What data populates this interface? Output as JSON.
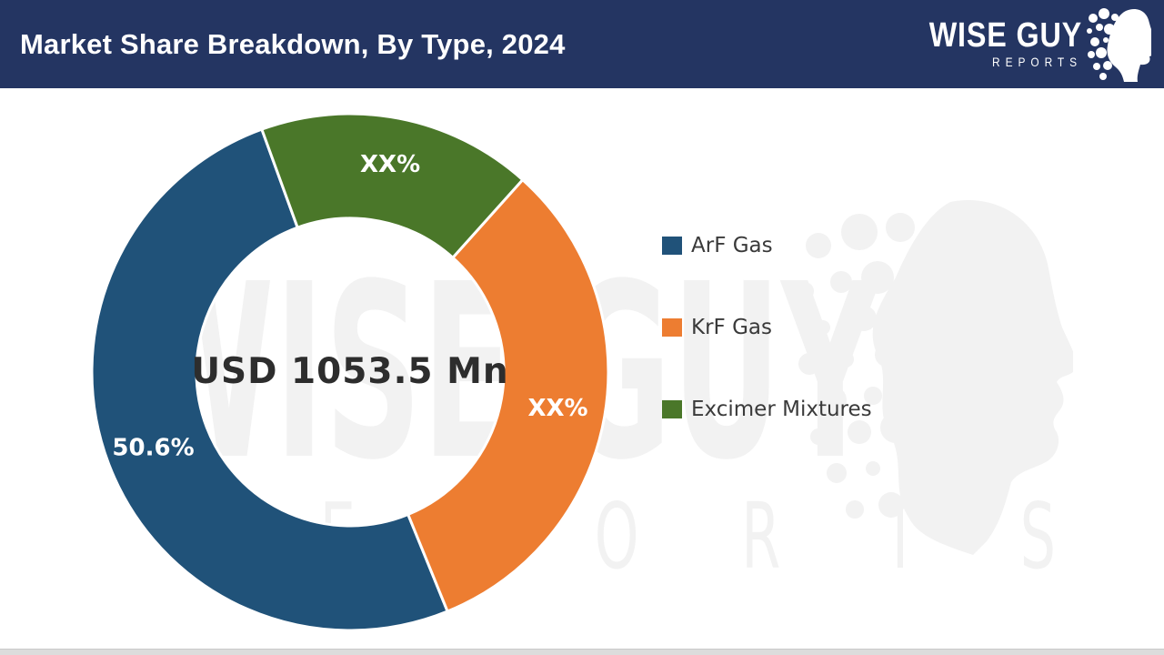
{
  "header": {
    "title": "Market Share Breakdown, By Type, 2024",
    "logo": {
      "line1": "WISE GUY",
      "line2": "REPORTS"
    }
  },
  "chart_data": {
    "type": "pie",
    "subtype": "donut",
    "title": "Market Share Breakdown, By Type, 2024",
    "center_label": "USD 1053.5 Mn",
    "start_angle_deg": 110,
    "direction": "counterclockwise",
    "legend_position": "right",
    "slices": [
      {
        "name": "ArF Gas",
        "value": 50.6,
        "label": "50.6%",
        "color": "#205279"
      },
      {
        "name": "KrF Gas",
        "value": 32.2,
        "label": "XX%",
        "color": "#ed7d31"
      },
      {
        "name": "Excimer Mixtures",
        "value": 17.2,
        "label": "XX%",
        "color": "#4a7729"
      }
    ]
  },
  "watermark": {
    "line1": "WISE GUY",
    "line2": "R E P O R T S"
  },
  "colors": {
    "header_bg": "#243562",
    "page_bg": "#ffffff",
    "footer_bar": "#dcdcdc",
    "watermark": "#f2f2f2",
    "center_text": "#2d2d2d",
    "legend_text": "#3a3a3a",
    "slice_label_text": "#ffffff"
  }
}
